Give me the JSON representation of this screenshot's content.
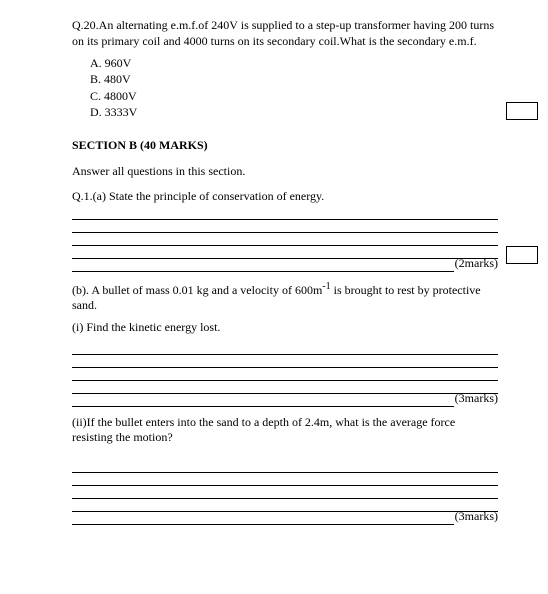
{
  "q20": {
    "text": "Q.20.An alternating e.m.f.of 240V is supplied to a step-up transformer having 200 turns on its primary coil and 4000 turns on its secondary coil.What is the secondary e.m.f.",
    "optA": "A. 960V",
    "optB": "B. 480V",
    "optC": "C. 4800V",
    "optD": "D. 3333V"
  },
  "sectionB": {
    "heading": "SECTION B (40 MARKS)",
    "instructions": "Answer all questions in this section."
  },
  "q1a": {
    "text": "Q.1.(a) State the principle of conservation of energy.",
    "marks": "(2marks)"
  },
  "q1b": {
    "text_pre": "(b). A bullet of mass 0.01 kg and a velocity of 600m",
    "text_sup": "-1",
    "text_post": " is brought to rest by protective sand.",
    "i_text": " (i) Find the kinetic energy lost.",
    "i_marks": "(3marks)",
    "ii_text": "(ii)If the bullet enters into the sand to a depth of 2.4m, what is the average force resisting the motion?",
    "ii_marks": "(3marks)"
  }
}
